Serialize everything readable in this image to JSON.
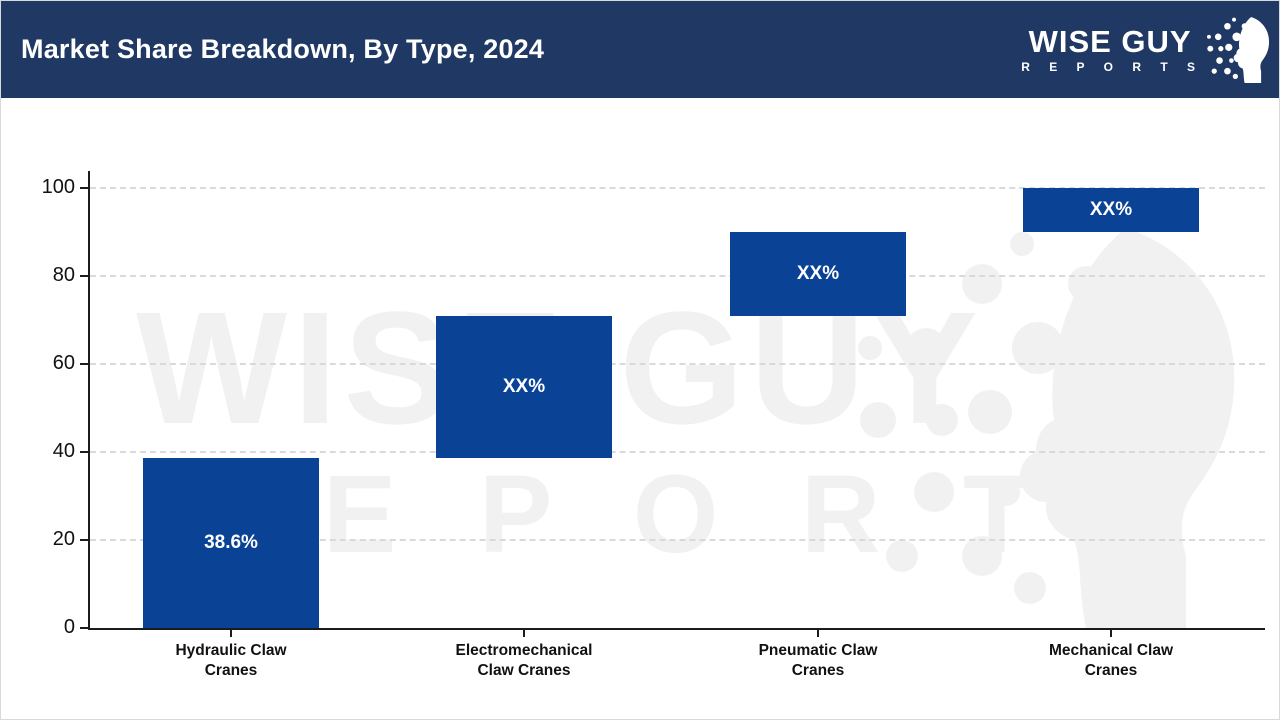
{
  "header": {
    "title": "Market Share Breakdown, By Type, 2024",
    "background_color": "#1f3864",
    "logo": {
      "line1": "WISE GUY",
      "line2": "R E P O R T S"
    }
  },
  "watermark": {
    "line1": "WISE GUY",
    "line2": "R E P O R T S"
  },
  "chart_data": {
    "type": "bar",
    "subtype": "waterfall",
    "title": "Market Share Breakdown, By Type, 2024",
    "categories": [
      [
        "Hydraulic Claw",
        "Cranes"
      ],
      [
        "Electromechanical",
        "Claw Cranes"
      ],
      [
        "Pneumatic Claw",
        "Cranes"
      ],
      [
        "Mechanical Claw",
        "Cranes"
      ]
    ],
    "segments": [
      {
        "start": 0,
        "end": 38.6,
        "label": "38.6%"
      },
      {
        "start": 38.6,
        "end": 71,
        "label": "XX%"
      },
      {
        "start": 71,
        "end": 90,
        "label": "XX%"
      },
      {
        "start": 90,
        "end": 100,
        "label": "XX%"
      }
    ],
    "xlabel": "",
    "ylabel": "",
    "ylim": [
      0,
      100
    ],
    "yticks": [
      0,
      20,
      40,
      60,
      80,
      100
    ],
    "grid": "horizontal-dashed",
    "legend": "none",
    "bar_color": "#0a4296",
    "bar_label_color": "#ffffff",
    "axis_color": "#1c1c1c",
    "gridline_color": "#d9d9d9"
  }
}
